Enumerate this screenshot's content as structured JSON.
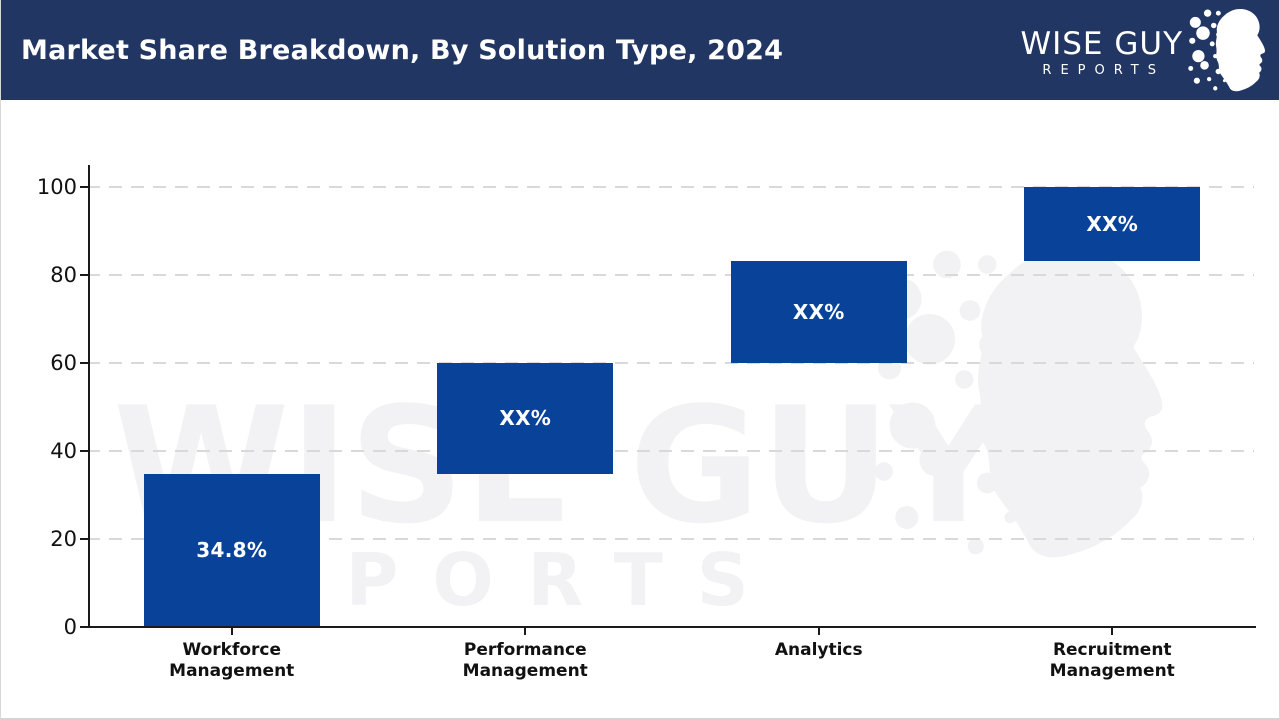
{
  "header": {
    "title": "Market Share Breakdown, By Solution Type, 2024",
    "logo": {
      "name": "WISE GUY",
      "tagline": "REPORTS"
    }
  },
  "watermark": {
    "line1": "WISE GUY",
    "line2": "REPORTS"
  },
  "chart_data": {
    "type": "bar",
    "variant": "waterfall",
    "title": "Market Share Breakdown, By Solution Type, 2024",
    "categories": [
      "Workforce Management",
      "Performance Management",
      "Analytics",
      "Recruitment Management"
    ],
    "category_lines": [
      [
        "Workforce",
        "Management"
      ],
      [
        "Performance",
        "Management"
      ],
      [
        "Analytics"
      ],
      [
        "Recruitment",
        "Management"
      ]
    ],
    "bars": [
      {
        "category": "Workforce Management",
        "start": 0,
        "end": 34.8,
        "label": "34.8%"
      },
      {
        "category": "Performance Management",
        "start": 34.8,
        "end": 60,
        "label": "XX%"
      },
      {
        "category": "Analytics",
        "start": 60,
        "end": 83.2,
        "label": "XX%"
      },
      {
        "category": "Recruitment Management",
        "start": 83.2,
        "end": 100,
        "label": "XX%"
      }
    ],
    "yticks": [
      0,
      20,
      40,
      60,
      80,
      100
    ],
    "ylim": [
      0,
      105
    ],
    "xlabel": "",
    "ylabel": "",
    "grid": "dashed-horizontal",
    "legend": "none"
  },
  "colors": {
    "header_bg": "#213663",
    "bar": "#084399",
    "bar_label": "#ffffff",
    "gridline": "#d9d9d9",
    "axis": "#1a1a1a",
    "tick_text": "#111111",
    "watermark": "#f2f2f4",
    "title_text": "#ffffff"
  }
}
